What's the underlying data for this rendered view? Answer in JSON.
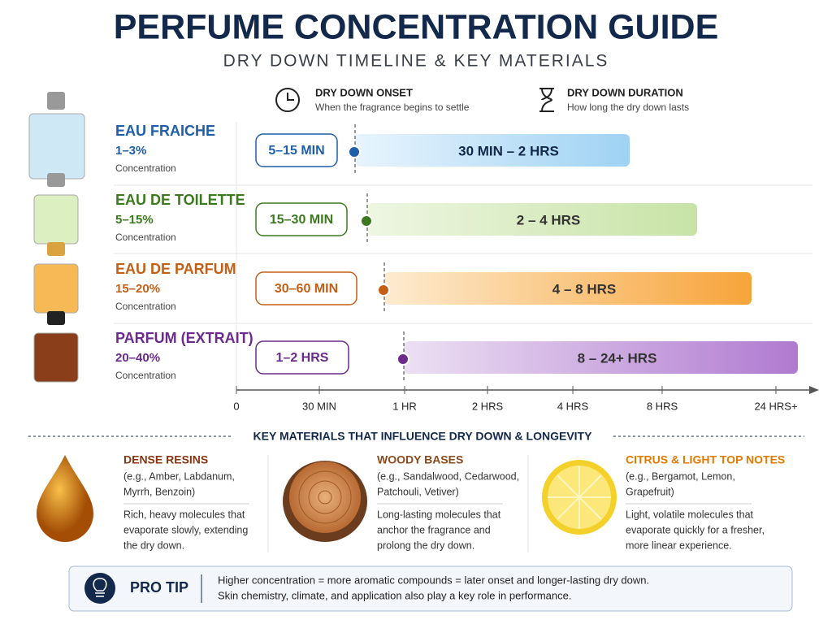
{
  "header": {
    "title": "PERFUME CONCENTRATION GUIDE",
    "subtitle": "DRY DOWN TIMELINE & KEY MATERIALS"
  },
  "legend": [
    {
      "title": "DRY DOWN ONSET",
      "desc": "When the fragrance begins to settle"
    },
    {
      "title": "DRY DOWN DURATION",
      "desc": "How long the dry down lasts"
    }
  ],
  "rows": [
    {
      "name": "EAU FRAICHE",
      "range": "1–3%",
      "label": "Concentration",
      "onset": "5–15 MIN",
      "duration": "30 MIN – 2 HRS"
    },
    {
      "name": "EAU DE TOILETTE",
      "range": "5–15%",
      "label": "Concentration",
      "onset": "15–30 MIN",
      "duration": "2 – 4 HRS"
    },
    {
      "name": "EAU DE PARFUM",
      "range": "15–20%",
      "label": "Concentration",
      "onset": "30–60 MIN",
      "duration": "4 – 8 HRS"
    },
    {
      "name": "PARFUM (EXTRAIT)",
      "range": "20–40%",
      "label": "Concentration",
      "onset": "1–2 HRS",
      "duration": "8 – 24+ HRS"
    }
  ],
  "axis": [
    "0",
    "30 MIN",
    "1 HR",
    "2 HRS",
    "4 HRS",
    "8 HRS",
    "24 HRS+"
  ],
  "materials": {
    "title": "KEY MATERIALS THAT INFLUENCE DRY DOWN & LONGEVITY",
    "items": [
      {
        "name": "DENSE RESINS",
        "examples": [
          "(e.g., Amber, Labdanum,",
          "Myrrh, Benzoin)"
        ],
        "desc": [
          "Rich, heavy molecules that",
          "evaporate slowly, extending",
          "the dry down."
        ]
      },
      {
        "name": "WOODY BASES",
        "examples": [
          "(e.g., Sandalwood, Cedarwood,",
          "Patchouli, Vetiver)"
        ],
        "desc": [
          "Long-lasting molecules that",
          "anchor the fragrance and",
          "prolong the dry down."
        ]
      },
      {
        "name": "CITRUS & LIGHT TOP NOTES",
        "examples": [
          "(e.g., Bergamot, Lemon,",
          "Grapefruit)"
        ],
        "desc": [
          "Light, volatile molecules that",
          "evaporate quickly for a fresher,",
          "more linear experience."
        ]
      }
    ]
  },
  "tip": {
    "label": "PRO TIP",
    "lines": [
      "Higher concentration = more aromatic compounds = later onset and longer-lasting dry down.",
      "Skin chemistry, climate, and application also play a key role in performance."
    ]
  }
}
